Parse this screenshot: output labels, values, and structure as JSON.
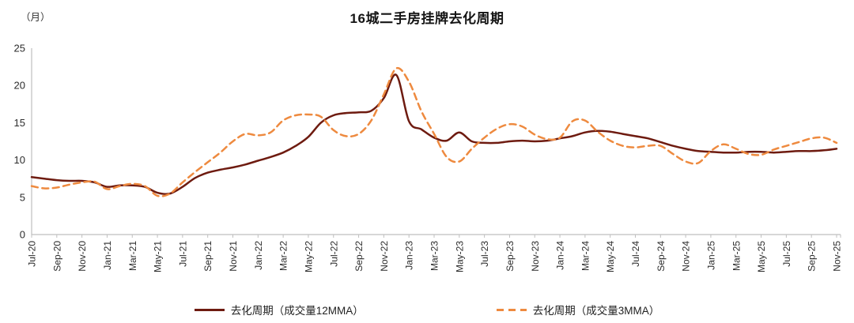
{
  "header": {
    "title": "16城二手房挂牌去化周期",
    "unit_label": "（月）"
  },
  "legend": {
    "items": [
      {
        "label": "去化周期（成交量12MMA）",
        "style": "solid",
        "color": "#6E1B10"
      },
      {
        "label": "去化周期（成交量3MMA）",
        "style": "dashed",
        "color": "#EE8A3F"
      }
    ]
  },
  "chart_data": {
    "type": "line",
    "title": "16城二手房挂牌去化周期",
    "ylabel": "（月）",
    "ylim": [
      0,
      25
    ],
    "yticks": [
      0,
      5,
      10,
      15,
      20,
      25
    ],
    "grid": false,
    "legend_position": "bottom",
    "axis_color": "#BFBFBF",
    "tick_label_color": "#2B2B2B",
    "x_label_every": 2,
    "x": [
      "Jul-20",
      "Aug-20",
      "Sep-20",
      "Oct-20",
      "Nov-20",
      "Dec-20",
      "Jan-21",
      "Feb-21",
      "Mar-21",
      "Apr-21",
      "May-21",
      "Jun-21",
      "Jul-21",
      "Aug-21",
      "Sep-21",
      "Oct-21",
      "Nov-21",
      "Dec-21",
      "Jan-22",
      "Feb-22",
      "Mar-22",
      "Apr-22",
      "May-22",
      "Jun-22",
      "Jul-22",
      "Aug-22",
      "Sep-22",
      "Oct-22",
      "Nov-22",
      "Dec-22",
      "Jan-23",
      "Feb-23",
      "Mar-23",
      "Apr-23",
      "May-23",
      "Jun-23",
      "Jul-23",
      "Aug-23",
      "Sep-23",
      "Oct-23",
      "Nov-23",
      "Dec-23",
      "Jan-24",
      "Feb-24",
      "Mar-24",
      "Apr-24",
      "May-24",
      "Jun-24",
      "Jul-24",
      "Aug-24",
      "Sep-24",
      "Oct-24",
      "Nov-24",
      "Dec-24",
      "Jan-25",
      "Feb-25",
      "Mar-25",
      "Apr-25",
      "May-25",
      "Jun-25",
      "Jul-25",
      "Aug-25",
      "Sep-25",
      "Oct-25",
      "Nov-25"
    ],
    "series": [
      {
        "name": "去化周期（成交量12MMA）",
        "style": "solid",
        "color": "#6E1B10",
        "values": [
          7.7,
          7.5,
          7.3,
          7.2,
          7.2,
          7.0,
          6.4,
          6.6,
          6.6,
          6.4,
          5.6,
          5.5,
          6.4,
          7.6,
          8.3,
          8.7,
          9.0,
          9.4,
          9.9,
          10.4,
          11.0,
          11.9,
          13.1,
          15.0,
          16.0,
          16.3,
          16.4,
          16.6,
          18.3,
          21.4,
          15.2,
          14.1,
          13.0,
          12.6,
          13.7,
          12.5,
          12.3,
          12.3,
          12.5,
          12.6,
          12.5,
          12.6,
          12.9,
          13.2,
          13.7,
          13.9,
          13.8,
          13.5,
          13.2,
          12.9,
          12.4,
          11.9,
          11.5,
          11.2,
          11.1,
          11.0,
          11.0,
          11.1,
          11.1,
          11.0,
          11.1,
          11.2,
          11.2,
          11.3,
          11.5
        ]
      },
      {
        "name": "去化周期（成交量3MMA）",
        "style": "dashed",
        "color": "#EE8A3F",
        "values": [
          6.5,
          6.2,
          6.3,
          6.7,
          7.0,
          7.1,
          6.1,
          6.5,
          6.8,
          6.5,
          5.2,
          5.5,
          7.0,
          8.4,
          9.7,
          11.0,
          12.5,
          13.5,
          13.3,
          13.7,
          15.3,
          16.0,
          16.1,
          15.8,
          14.0,
          13.2,
          13.5,
          15.3,
          18.8,
          22.3,
          20.5,
          16.5,
          13.5,
          10.4,
          9.8,
          11.5,
          13.0,
          14.2,
          14.8,
          14.5,
          13.4,
          12.8,
          13.0,
          15.2,
          15.3,
          13.8,
          12.6,
          11.9,
          11.7,
          11.9,
          11.9,
          10.8,
          9.8,
          9.6,
          11.2,
          12.1,
          11.5,
          10.8,
          10.7,
          11.4,
          11.9,
          12.4,
          12.9,
          13.0,
          12.3
        ]
      }
    ]
  }
}
